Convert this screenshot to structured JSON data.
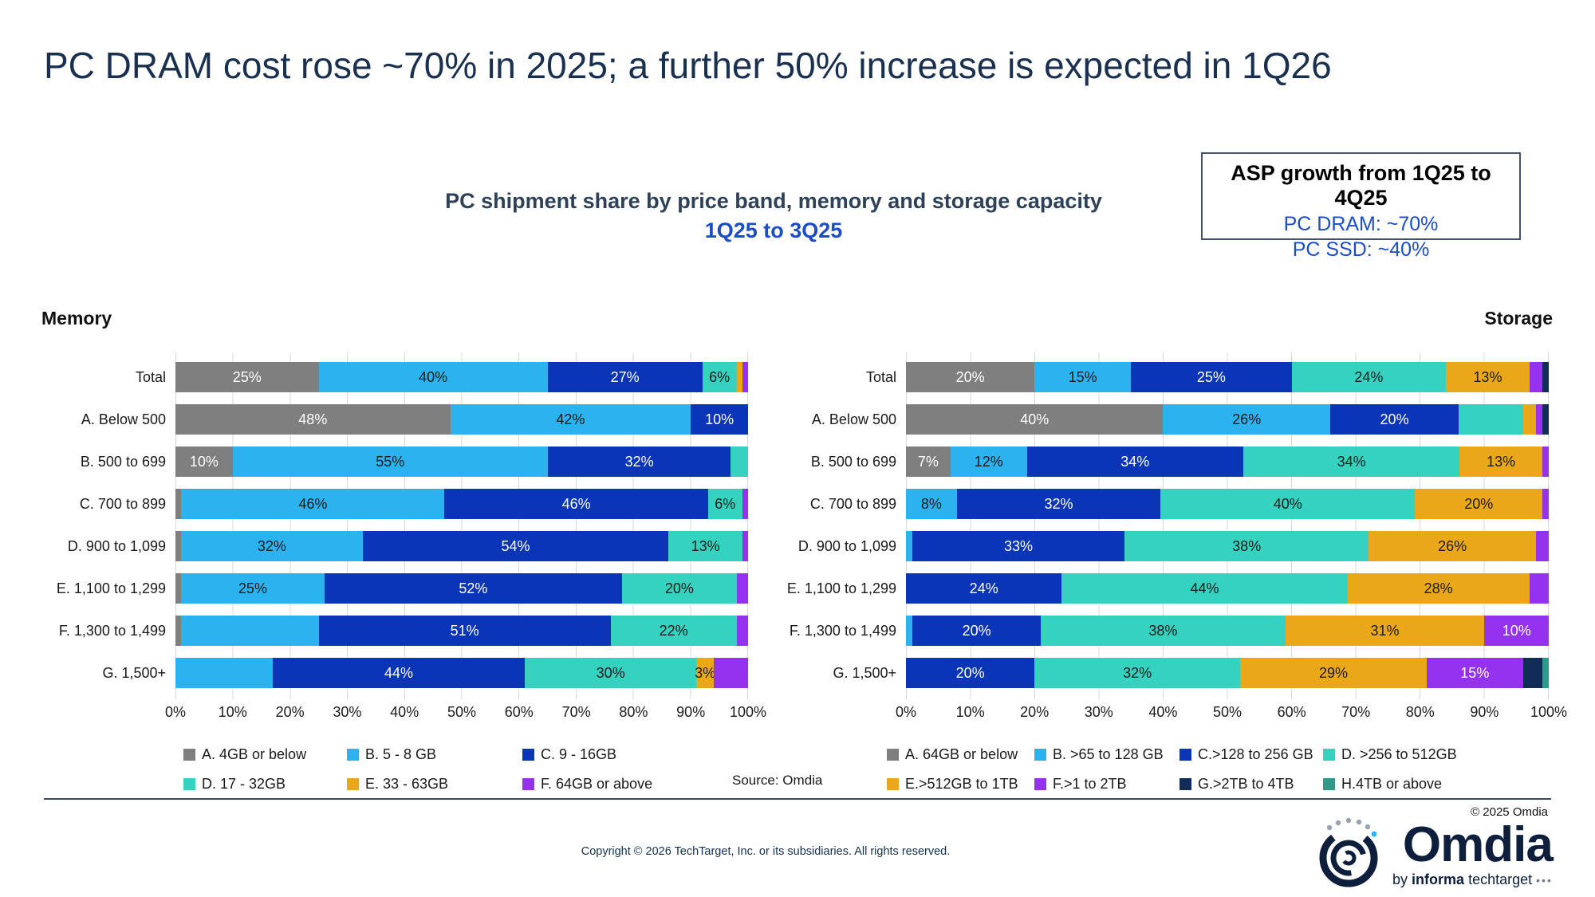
{
  "page": {
    "title": "PC DRAM cost rose ~70% in 2025; a further 50% increase is expected in 1Q26",
    "subtitle_line1": "PC shipment share by price band, memory and storage capacity",
    "subtitle_line2": "1Q25 to 3Q25",
    "asp_box": {
      "title": "ASP growth from 1Q25 to 4Q25",
      "dram": "PC DRAM: ~70%",
      "ssd": "PC SSD: ~40%"
    },
    "source": "Source: Omdia",
    "footer": {
      "copyright": "Copyright © 2026 TechTarget, Inc. or its subsidiaries. All rights reserved.",
      "omdia_copyright": "© 2025 Omdia",
      "logo_text": "Omdia",
      "tagline_by": "by",
      "tagline_informa": "informa",
      "tagline_techtarget": "techtarget",
      "tagline_dots": "•••"
    }
  },
  "colors": {
    "gray": "#7F7F7F",
    "light_blue": "#2BB3F0",
    "dark_blue": "#0B35B7",
    "teal": "#35D2C0",
    "gold": "#EAA718",
    "purple": "#9432EE",
    "navy": "#112C57",
    "green": "#2F9A8A",
    "accent_blue": "#1C4CC6",
    "title_navy": "#1A3050"
  },
  "chart_data": [
    {
      "type": "bar",
      "stacked": true,
      "orientation": "horizontal",
      "title": "Memory",
      "unit": "%",
      "xlim": [
        0,
        100
      ],
      "x_ticks": [
        "0%",
        "10%",
        "20%",
        "30%",
        "40%",
        "50%",
        "60%",
        "70%",
        "80%",
        "90%",
        "100%"
      ],
      "series_names": [
        "A. 4GB or below",
        "B. 5 - 8 GB",
        "C. 9 - 16GB",
        "D. 17 - 32GB",
        "E. 33 - 63GB",
        "F. 64GB or above"
      ],
      "series_colors": [
        "#7F7F7F",
        "#2BB3F0",
        "#0B35B7",
        "#35D2C0",
        "#EAA718",
        "#9432EE"
      ],
      "legend_columns": [
        205,
        220,
        300
      ],
      "rows": [
        {
          "category": "Total",
          "segments": [
            {
              "s": 0,
              "v": 25,
              "label": "25%"
            },
            {
              "s": 1,
              "v": 40,
              "label": "40%"
            },
            {
              "s": 2,
              "v": 27,
              "label": "27%"
            },
            {
              "s": 3,
              "v": 6,
              "label": "6%"
            },
            {
              "s": 4,
              "v": 1,
              "label": ""
            },
            {
              "s": 5,
              "v": 1,
              "label": ""
            }
          ]
        },
        {
          "category": "A. Below 500",
          "segments": [
            {
              "s": 0,
              "v": 48,
              "label": "48%"
            },
            {
              "s": 1,
              "v": 42,
              "label": "42%"
            },
            {
              "s": 2,
              "v": 10,
              "label": "10%"
            }
          ]
        },
        {
          "category": "B. 500 to 699",
          "segments": [
            {
              "s": 0,
              "v": 10,
              "label": "10%"
            },
            {
              "s": 1,
              "v": 55,
              "label": "55%"
            },
            {
              "s": 2,
              "v": 32,
              "label": "32%"
            },
            {
              "s": 3,
              "v": 3,
              "label": ""
            }
          ]
        },
        {
          "category": "C. 700 to 899",
          "segments": [
            {
              "s": 0,
              "v": 1,
              "label": ""
            },
            {
              "s": 1,
              "v": 46,
              "label": "46%"
            },
            {
              "s": 2,
              "v": 46,
              "label": "46%"
            },
            {
              "s": 3,
              "v": 6,
              "label": "6%"
            },
            {
              "s": 5,
              "v": 1,
              "label": ""
            }
          ]
        },
        {
          "category": "D. 900 to 1,099",
          "segments": [
            {
              "s": 0,
              "v": 1,
              "label": ""
            },
            {
              "s": 1,
              "v": 32,
              "label": "32%"
            },
            {
              "s": 2,
              "v": 54,
              "label": "54%"
            },
            {
              "s": 3,
              "v": 13,
              "label": "13%"
            },
            {
              "s": 5,
              "v": 1,
              "label": ""
            }
          ]
        },
        {
          "category": "E. 1,100 to 1,299",
          "segments": [
            {
              "s": 0,
              "v": 1,
              "label": ""
            },
            {
              "s": 1,
              "v": 25,
              "label": "25%"
            },
            {
              "s": 2,
              "v": 52,
              "label": "52%"
            },
            {
              "s": 3,
              "v": 20,
              "label": "20%"
            },
            {
              "s": 5,
              "v": 2,
              "label": ""
            }
          ]
        },
        {
          "category": "F. 1,300 to 1,499",
          "segments": [
            {
              "s": 0,
              "v": 1,
              "label": ""
            },
            {
              "s": 1,
              "v": 24,
              "label": ""
            },
            {
              "s": 2,
              "v": 51,
              "label": "51%"
            },
            {
              "s": 3,
              "v": 22,
              "label": "22%"
            },
            {
              "s": 5,
              "v": 2,
              "label": ""
            }
          ]
        },
        {
          "category": "G. 1,500+",
          "segments": [
            {
              "s": 1,
              "v": 17,
              "label": ""
            },
            {
              "s": 2,
              "v": 44,
              "label": "44%"
            },
            {
              "s": 3,
              "v": 30,
              "label": "30%"
            },
            {
              "s": 4,
              "v": 3,
              "label": "3%"
            },
            {
              "s": 5,
              "v": 6,
              "label": ""
            }
          ]
        }
      ]
    },
    {
      "type": "bar",
      "stacked": true,
      "orientation": "horizontal",
      "title": "Storage",
      "unit": "%",
      "xlim": [
        0,
        100
      ],
      "x_ticks": [
        "0%",
        "10%",
        "20%",
        "30%",
        "40%",
        "50%",
        "60%",
        "70%",
        "80%",
        "90%",
        "100%"
      ],
      "series_names": [
        "A. 64GB or below",
        "B. >65 to 128 GB",
        "C.>128 to 256 GB",
        "D. >256 to 512GB",
        "E.>512GB to 1TB",
        "F.>1 to 2TB",
        "G.>2TB to 4TB",
        "H.4TB or above"
      ],
      "series_colors": [
        "#7F7F7F",
        "#2BB3F0",
        "#0B35B7",
        "#35D2C0",
        "#EAA718",
        "#9432EE",
        "#112C57",
        "#2F9A8A"
      ],
      "legend_columns": [
        185,
        182,
        180,
        215
      ],
      "rows": [
        {
          "category": "Total",
          "segments": [
            {
              "s": 0,
              "v": 20,
              "label": "20%"
            },
            {
              "s": 1,
              "v": 15,
              "label": "15%"
            },
            {
              "s": 2,
              "v": 25,
              "label": "25%"
            },
            {
              "s": 3,
              "v": 24,
              "label": "24%"
            },
            {
              "s": 4,
              "v": 13,
              "label": "13%"
            },
            {
              "s": 5,
              "v": 2,
              "label": ""
            },
            {
              "s": 6,
              "v": 1,
              "label": ""
            }
          ]
        },
        {
          "category": "A. Below 500",
          "segments": [
            {
              "s": 0,
              "v": 40,
              "label": "40%"
            },
            {
              "s": 1,
              "v": 26,
              "label": "26%"
            },
            {
              "s": 2,
              "v": 20,
              "label": "20%"
            },
            {
              "s": 3,
              "v": 10,
              "label": ""
            },
            {
              "s": 4,
              "v": 2,
              "label": ""
            },
            {
              "s": 5,
              "v": 1,
              "label": ""
            },
            {
              "s": 6,
              "v": 1,
              "label": ""
            }
          ]
        },
        {
          "category": "B. 500 to 699",
          "segments": [
            {
              "s": 0,
              "v": 7,
              "label": "7%"
            },
            {
              "s": 1,
              "v": 12,
              "label": "12%"
            },
            {
              "s": 2,
              "v": 34,
              "label": "34%"
            },
            {
              "s": 3,
              "v": 34,
              "label": "34%"
            },
            {
              "s": 4,
              "v": 13,
              "label": "13%"
            },
            {
              "s": 5,
              "v": 1,
              "label": ""
            }
          ]
        },
        {
          "category": "C. 700 to 899",
          "segments": [
            {
              "s": 1,
              "v": 8,
              "label": "8%"
            },
            {
              "s": 2,
              "v": 32,
              "label": "32%"
            },
            {
              "s": 3,
              "v": 40,
              "label": "40%"
            },
            {
              "s": 4,
              "v": 20,
              "label": "20%"
            },
            {
              "s": 5,
              "v": 1,
              "label": ""
            }
          ]
        },
        {
          "category": "D. 900 to 1,099",
          "segments": [
            {
              "s": 1,
              "v": 1,
              "label": ""
            },
            {
              "s": 2,
              "v": 33,
              "label": "33%"
            },
            {
              "s": 3,
              "v": 38,
              "label": "38%"
            },
            {
              "s": 4,
              "v": 26,
              "label": "26%"
            },
            {
              "s": 5,
              "v": 2,
              "label": ""
            }
          ]
        },
        {
          "category": "E. 1,100 to 1,299",
          "segments": [
            {
              "s": 2,
              "v": 24,
              "label": "24%"
            },
            {
              "s": 3,
              "v": 44,
              "label": "44%"
            },
            {
              "s": 4,
              "v": 28,
              "label": "28%"
            },
            {
              "s": 5,
              "v": 3,
              "label": ""
            }
          ]
        },
        {
          "category": "F. 1,300 to 1,499",
          "segments": [
            {
              "s": 1,
              "v": 1,
              "label": ""
            },
            {
              "s": 2,
              "v": 20,
              "label": "20%"
            },
            {
              "s": 3,
              "v": 38,
              "label": "38%"
            },
            {
              "s": 4,
              "v": 31,
              "label": "31%"
            },
            {
              "s": 5,
              "v": 10,
              "label": "10%"
            }
          ]
        },
        {
          "category": "G. 1,500+",
          "segments": [
            {
              "s": 2,
              "v": 20,
              "label": "20%"
            },
            {
              "s": 3,
              "v": 32,
              "label": "32%"
            },
            {
              "s": 4,
              "v": 29,
              "label": "29%"
            },
            {
              "s": 5,
              "v": 15,
              "label": "15%"
            },
            {
              "s": 6,
              "v": 3,
              "label": ""
            },
            {
              "s": 7,
              "v": 1,
              "label": ""
            }
          ]
        }
      ]
    }
  ]
}
